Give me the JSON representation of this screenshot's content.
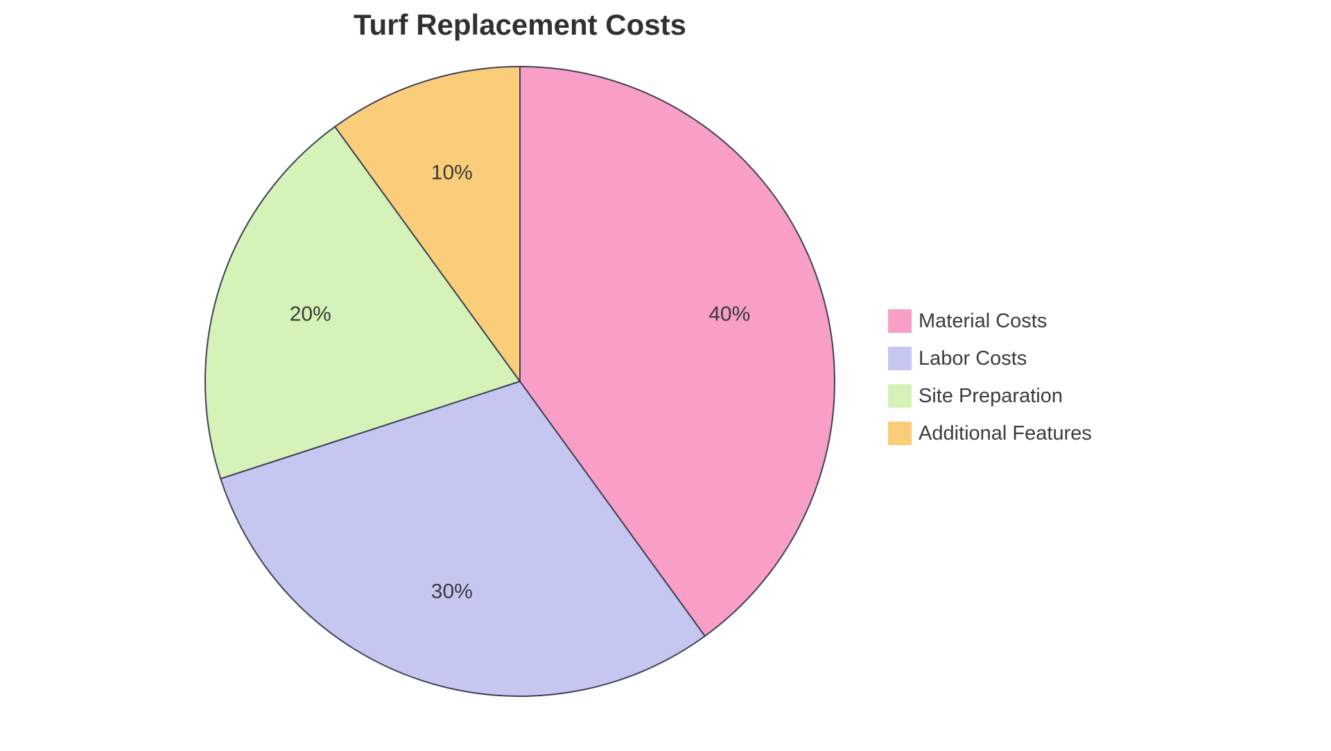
{
  "page": {
    "background_color": "#ffffff"
  },
  "chart_data": {
    "type": "pie",
    "title": "Turf Replacement Costs",
    "slices": [
      {
        "label": "Material Costs",
        "value": 40,
        "pct_label": "40%",
        "color": "#F99EC6"
      },
      {
        "label": "Labor Costs",
        "value": 30,
        "pct_label": "30%",
        "color": "#C5C7F0"
      },
      {
        "label": "Site Preparation",
        "value": 20,
        "pct_label": "20%",
        "color": "#D5F2B8"
      },
      {
        "label": "Additional Features",
        "value": 10,
        "pct_label": "10%",
        "color": "#FACD7A"
      }
    ],
    "start_angle_deg": 0,
    "direction": "clockwise",
    "legend_position": "right",
    "stroke_color": "#3D4056",
    "label_color": "#3b3b3b",
    "grid": false
  }
}
